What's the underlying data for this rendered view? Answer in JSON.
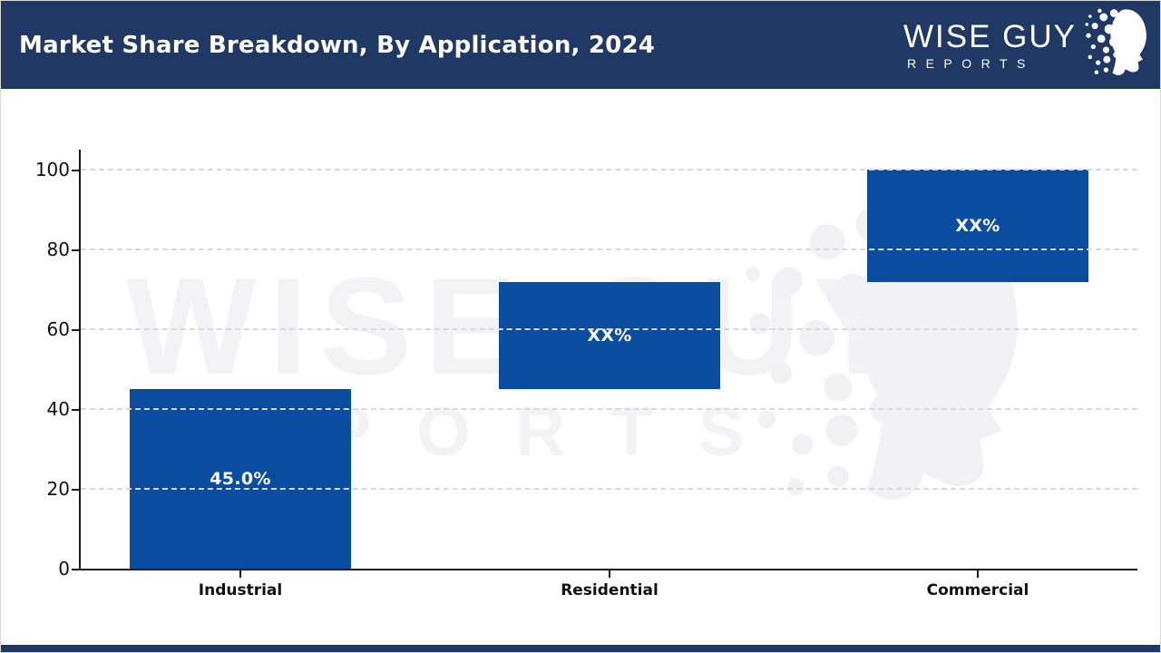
{
  "header": {
    "title": "Market Share Breakdown, By Application, 2024",
    "logo_line1": "WISE GUY",
    "logo_line2": "REPORTS"
  },
  "watermark": {
    "line1": "WISE GUY",
    "line2": "REPORTS"
  },
  "chart_data": {
    "type": "bar",
    "subtype": "floating-segment-waterfall",
    "title": "Market Share Breakdown, By Application, 2024",
    "categories": [
      "Industrial",
      "Residential",
      "Commercial"
    ],
    "segments": [
      {
        "category": "Industrial",
        "start": 0,
        "end": 45,
        "label": "45.0%"
      },
      {
        "category": "Residential",
        "start": 45,
        "end": 71.7,
        "label": "XX%"
      },
      {
        "category": "Commercial",
        "start": 71.7,
        "end": 100,
        "label": "XX%"
      }
    ],
    "xlabel": "",
    "ylabel": "",
    "ylim": [
      0,
      100
    ],
    "yticks": [
      0,
      20,
      40,
      60,
      80,
      100
    ],
    "grid": true,
    "legend": "none"
  },
  "colors": {
    "header_bg": "#1f3864",
    "footer_bg": "#1f3864",
    "bar": "#0a4c9f",
    "bar_label": "#ffffff",
    "grid": "#d7d9dd",
    "axis": "#1a1a1a",
    "watermark": "#f3f3f5"
  }
}
